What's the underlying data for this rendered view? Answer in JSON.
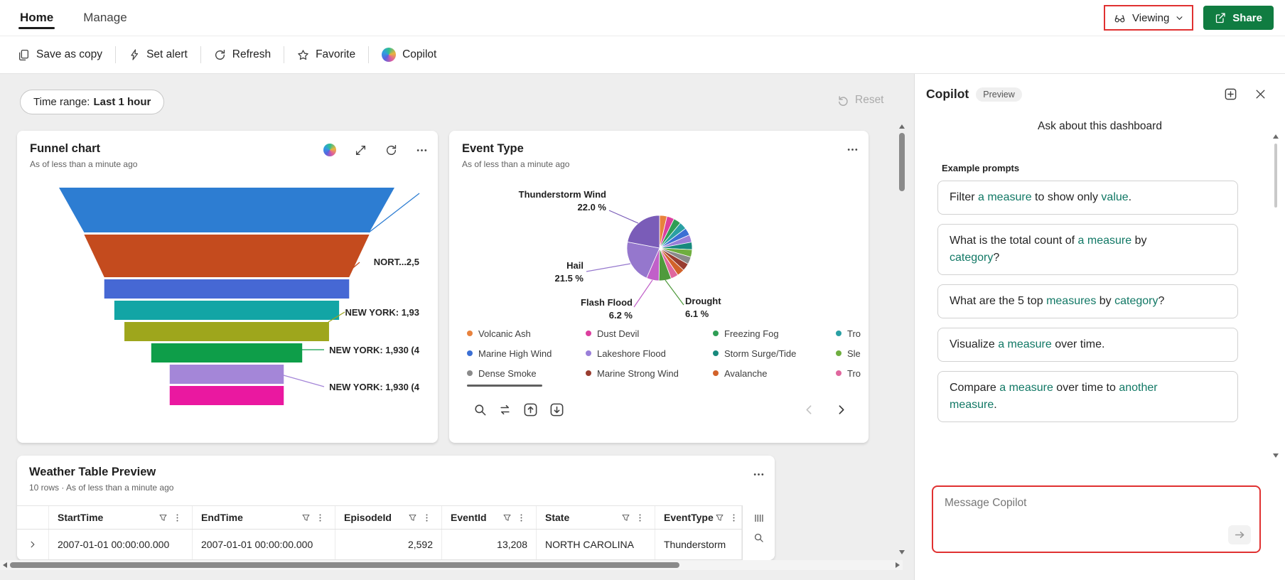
{
  "colors": {
    "accent_teal": "#117865",
    "share_green": "#107c41",
    "annotation_red": "#e03131"
  },
  "topnav": {
    "tabs": [
      {
        "label": "Home"
      },
      {
        "label": "Manage"
      }
    ],
    "viewing": {
      "label": "Viewing"
    },
    "share": {
      "label": "Share"
    }
  },
  "toolbar": {
    "items": [
      {
        "label": "Save as copy",
        "icon": "copy-icon"
      },
      {
        "label": "Set alert",
        "icon": "alert-bolt-icon"
      },
      {
        "label": "Refresh",
        "icon": "refresh-icon"
      },
      {
        "label": "Favorite",
        "icon": "star-icon"
      },
      {
        "label": "Copilot",
        "icon": "copilot-icon"
      }
    ]
  },
  "filter_bar": {
    "time_range_label": "Time range:",
    "time_range_value": "Last 1 hour",
    "reset_label": "Reset"
  },
  "funnel_card": {
    "title": "Funnel chart",
    "as_of": "As of less than a minute ago",
    "data_labels": [
      "NORT...2,5",
      "NEW YORK: 1,93",
      "NEW YORK: 1,930 (4",
      "NEW YORK: 1,930 (4"
    ]
  },
  "event_card": {
    "title": "Event Type",
    "as_of": "As of less than a minute ago",
    "callouts": [
      {
        "label": "Thunderstorm Wind",
        "value": "22.0 %"
      },
      {
        "label": "Hail",
        "value": "21.5 %"
      },
      {
        "label": "Flash Flood",
        "value": "6.2 %"
      },
      {
        "label": "Drought",
        "value": "6.1 %"
      }
    ]
  },
  "table_card": {
    "title": "Weather Table Preview",
    "subtitle": "10 rows · As of less than a minute ago",
    "columns": [
      "StartTime",
      "EndTime",
      "EpisodeId",
      "EventId",
      "State",
      "EventType"
    ],
    "rows": [
      [
        "2007-01-01 00:00:00.000",
        "2007-01-01 00:00:00.000",
        "2,592",
        "13,208",
        "NORTH CAROLINA",
        "Thunderstorm"
      ]
    ]
  },
  "copilot": {
    "title": "Copilot",
    "badge": "Preview",
    "heading": "Ask about this dashboard",
    "prompts_title": "Example prompts",
    "prompts": [
      {
        "segments": [
          {
            "text": "Filter "
          },
          {
            "text": "a measure",
            "link": true
          },
          {
            "text": " to show only "
          },
          {
            "text": "value",
            "link": true
          },
          {
            "text": "."
          }
        ]
      },
      {
        "segments": [
          {
            "text": "What is the total count of "
          },
          {
            "text": "a measure",
            "link": true
          },
          {
            "text": " by "
          },
          {
            "text": "category",
            "link": true
          },
          {
            "text": "?"
          }
        ]
      },
      {
        "segments": [
          {
            "text": "What are the 5 top "
          },
          {
            "text": "measures",
            "link": true
          },
          {
            "text": " by "
          },
          {
            "text": "category",
            "link": true
          },
          {
            "text": "?"
          }
        ]
      },
      {
        "segments": [
          {
            "text": "Visualize "
          },
          {
            "text": "a measure",
            "link": true
          },
          {
            "text": " over time."
          }
        ]
      },
      {
        "segments": [
          {
            "text": "Compare "
          },
          {
            "text": "a measure",
            "link": true
          },
          {
            "text": " over time to "
          },
          {
            "text": "another measure",
            "link": true
          },
          {
            "text": "."
          }
        ]
      }
    ],
    "input_placeholder": "Message Copilot"
  },
  "chart_data": [
    {
      "type": "funnel",
      "title": "Funnel chart",
      "visible_labels": [
        "NORT...2,5",
        "NEW YORK: 1,93",
        "NEW YORK: 1,930 (4",
        "NEW YORK: 1,930 (4"
      ],
      "segments": [
        {
          "color": "#2d7dd2",
          "relative_width": 1.0
        },
        {
          "color": "#c44b1e",
          "relative_width": 0.85
        },
        {
          "color": "#4668d4",
          "relative_width": 0.73
        },
        {
          "color": "#12a5a5",
          "relative_width": 0.67
        },
        {
          "color": "#9ea61c",
          "relative_width": 0.61
        },
        {
          "color": "#0e9e49",
          "relative_width": 0.45
        },
        {
          "color": "#a486d8",
          "relative_width": 0.34
        },
        {
          "color": "#ea18a0",
          "relative_width": 0.34
        }
      ]
    },
    {
      "type": "pie",
      "title": "Event Type",
      "labeled_slices": [
        {
          "label": "Thunderstorm Wind",
          "value_pct": 22.0,
          "color": "#7a5cb8"
        },
        {
          "label": "Hail",
          "value_pct": 21.5,
          "color": "#9577cd"
        },
        {
          "label": "Flash Flood",
          "value_pct": 6.2,
          "color": "#c160c9"
        },
        {
          "label": "Drought",
          "value_pct": 6.1,
          "color": "#4f9a3c"
        }
      ],
      "other_slices_pct_total": 44.2,
      "legend_position": "bottom",
      "legend": [
        {
          "label": "Volcanic Ash",
          "color": "#e8823d"
        },
        {
          "label": "Dust Devil",
          "color": "#dc3f9e"
        },
        {
          "label": "Freezing Fog",
          "color": "#2f9e55"
        },
        {
          "label": "Tro",
          "color": "#2aa0a4"
        },
        {
          "label": "Marine High Wind",
          "color": "#3b6fd4"
        },
        {
          "label": "Lakeshore Flood",
          "color": "#9a7fd9"
        },
        {
          "label": "Storm Surge/Tide",
          "color": "#17897d"
        },
        {
          "label": "Sle",
          "color": "#6fae3f"
        },
        {
          "label": "Dense Smoke",
          "color": "#8a8a8a"
        },
        {
          "label": "Marine Strong Wind",
          "color": "#993d30"
        },
        {
          "label": "Avalanche",
          "color": "#d2622a"
        },
        {
          "label": "Tro",
          "color": "#e0679e"
        }
      ]
    }
  ]
}
